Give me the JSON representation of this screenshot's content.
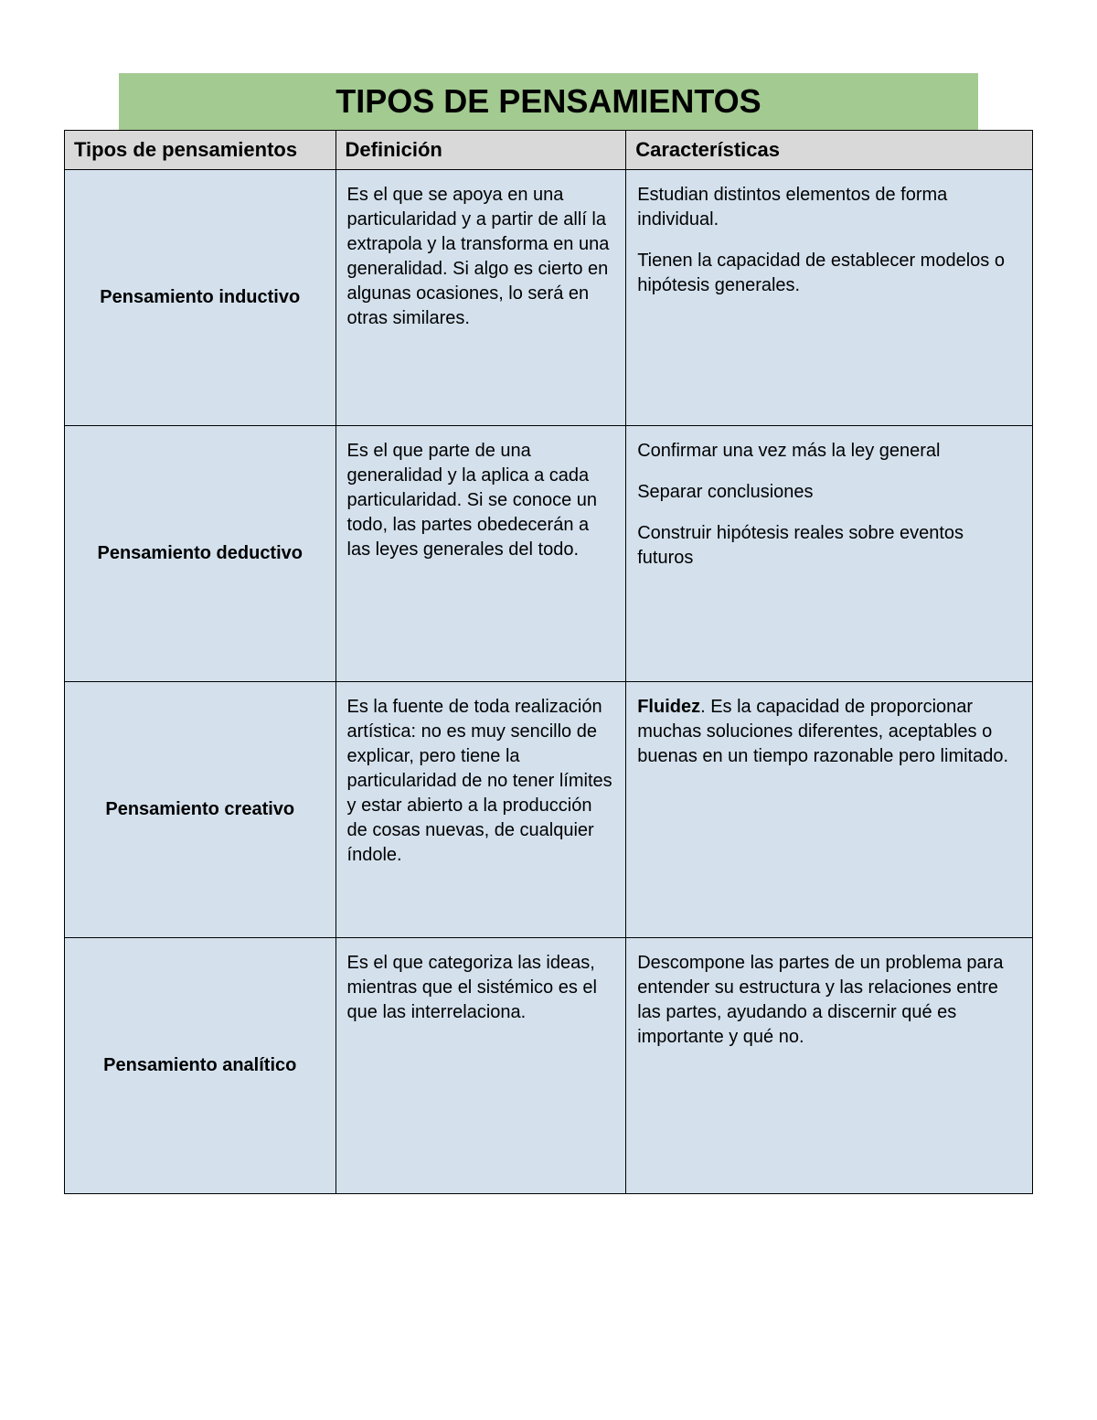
{
  "title": "TIPOS DE PENSAMIENTOS",
  "colors": {
    "title_bg": "#a3ca91",
    "header_bg": "#d9d9d9",
    "cell_bg": "#d4e1ed",
    "border": "#000000",
    "text": "#000000",
    "page_bg": "#ffffff"
  },
  "columns": {
    "tipo": "Tipos de pensamientos",
    "definicion": "Definición",
    "caracteristicas": "Características"
  },
  "rows": [
    {
      "tipo": "Pensamiento inductivo",
      "definicion": "Es el que se apoya en una particularidad y a partir de allí la extrapola y la transforma en una generalidad. Si algo es cierto en algunas ocasiones, lo será en otras similares.",
      "caracteristicas_lines": [
        "Estudian distintos elementos de forma individual.",
        "Tienen la capacidad de establecer modelos o hipótesis generales."
      ]
    },
    {
      "tipo": "Pensamiento deductivo",
      "definicion": "Es el que parte de una generalidad y la aplica a cada particularidad. Si se conoce un todo, las partes obedecerán a las leyes generales del todo.",
      "caracteristicas_lines": [
        "Confirmar una vez más la ley general",
        "Separar conclusiones",
        "Construir hipótesis reales sobre eventos futuros"
      ]
    },
    {
      "tipo": "Pensamiento creativo",
      "definicion": "Es la fuente de toda realización artística: no es muy sencillo de explicar, pero tiene la particularidad de no tener límites y estar abierto a la producción de cosas nuevas, de cualquier índole.",
      "caracteristicas_bold_lead": "Fluidez",
      "caracteristicas_rest": ". Es la capacidad de proporcionar muchas soluciones diferentes, aceptables o buenas en un tiempo razonable pero limitado."
    },
    {
      "tipo": "Pensamiento analítico",
      "definicion": "Es el que categoriza las ideas, mientras que el sistémico es el que las interrelaciona.",
      "caracteristicas_lines": [
        "Descompone las partes de un problema para entender su estructura y las relaciones entre las partes, ayudando a discernir qué es importante y qué no."
      ]
    }
  ]
}
